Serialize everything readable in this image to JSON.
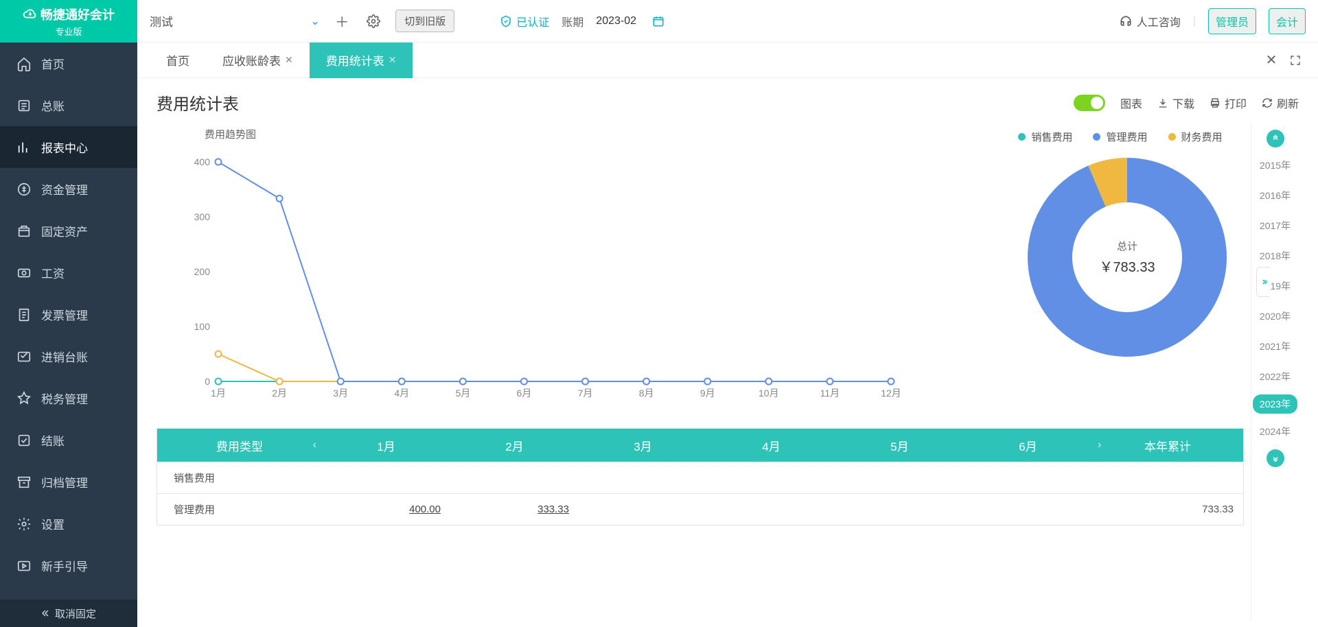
{
  "brand": {
    "name": "畅捷通好会计",
    "edition": "专业版"
  },
  "sidebar": {
    "items": [
      {
        "label": "首页",
        "icon": "home"
      },
      {
        "label": "总账",
        "icon": "ledger"
      },
      {
        "label": "报表中心",
        "icon": "report",
        "active": true
      },
      {
        "label": "资金管理",
        "icon": "funds"
      },
      {
        "label": "固定资产",
        "icon": "assets"
      },
      {
        "label": "工资",
        "icon": "salary"
      },
      {
        "label": "发票管理",
        "icon": "invoice"
      },
      {
        "label": "进销台账",
        "icon": "inout"
      },
      {
        "label": "税务管理",
        "icon": "tax"
      },
      {
        "label": "结账",
        "icon": "close"
      },
      {
        "label": "归档管理",
        "icon": "archive"
      },
      {
        "label": "设置",
        "icon": "settings"
      },
      {
        "label": "新手引导",
        "icon": "guide"
      }
    ],
    "pin_label": "取消固定"
  },
  "topbar": {
    "account": "测试",
    "switch_old": "切到旧版",
    "verified": "已认证",
    "period_label": "账期",
    "period_value": "2023-02",
    "consult": "人工咨询",
    "role_admin": "管理员",
    "role_acc": "会计"
  },
  "tabs": [
    {
      "label": "首页",
      "closable": false
    },
    {
      "label": "应收账龄表",
      "closable": true
    },
    {
      "label": "费用统计表",
      "closable": true,
      "active": true
    }
  ],
  "header": {
    "title": "费用统计表",
    "chart_label": "图表",
    "download": "下载",
    "print": "打印",
    "refresh": "刷新"
  },
  "legend": {
    "sales": "销售费用",
    "admin": "管理费用",
    "finance": "财务费用"
  },
  "colors": {
    "sales": "#2dc3b8",
    "admin": "#628fe6",
    "finance": "#f0b840",
    "grid": "#e8e8e8",
    "axis_text": "#888"
  },
  "line_chart": {
    "title": "费用趋势图",
    "x_labels": [
      "1月",
      "2月",
      "3月",
      "4月",
      "5月",
      "6月",
      "7月",
      "8月",
      "9月",
      "10月",
      "11月",
      "12月"
    ],
    "y_max": 400,
    "y_step": 100,
    "series": {
      "sales": [
        0,
        0,
        0,
        0,
        0,
        0,
        0,
        0,
        0,
        0,
        0,
        0
      ],
      "admin": [
        400,
        333.33,
        0,
        0,
        0,
        0,
        0,
        0,
        0,
        0,
        0,
        0
      ],
      "finance": [
        50,
        0,
        0,
        0,
        0,
        0,
        0,
        0,
        0,
        0,
        0,
        0
      ]
    },
    "marker_radius": 4.5,
    "line_width": 2
  },
  "donut": {
    "center_label": "总计",
    "center_value": "￥783.33",
    "slices": [
      {
        "key": "admin",
        "value": 733.33,
        "color": "#628fe6"
      },
      {
        "key": "finance",
        "value": 50.0,
        "color": "#f0b840"
      },
      {
        "key": "sales",
        "value": 0.0,
        "color": "#2dc3b8"
      }
    ],
    "outer_r": 145,
    "inner_r": 80
  },
  "years": {
    "list": [
      "2015年",
      "2016年",
      "2017年",
      "2018年",
      "2019年",
      "2020年",
      "2021年",
      "2022年",
      "2023年",
      "2024年"
    ],
    "active": "2023年"
  },
  "table": {
    "type_header": "费用类型",
    "month_headers": [
      "1月",
      "2月",
      "3月",
      "4月",
      "5月",
      "6月"
    ],
    "total_header": "本年累计",
    "rows": [
      {
        "type": "销售费用",
        "cells": [
          "",
          "",
          "",
          "",
          "",
          ""
        ],
        "total": ""
      },
      {
        "type": "管理费用",
        "cells": [
          "400.00",
          "333.33",
          "",
          "",
          "",
          ""
        ],
        "total": "733.33",
        "link": true
      }
    ]
  }
}
